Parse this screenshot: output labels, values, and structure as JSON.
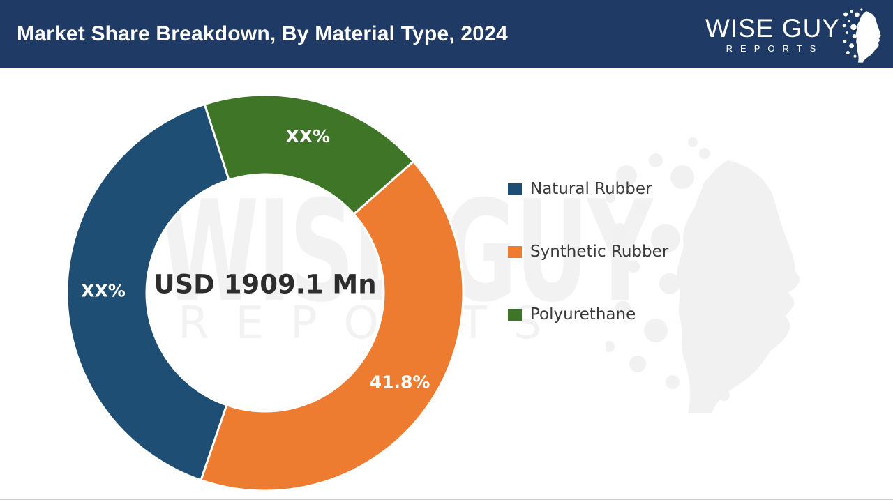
{
  "header": {
    "title": "Market Share Breakdown, By Material Type, 2024",
    "bg_color": "#1f3a64",
    "logo": {
      "brand": "WISE GUY",
      "sub": "REPORTS"
    }
  },
  "chart_data": {
    "type": "pie",
    "subtype": "donut",
    "center_label": "USD 1909.1 Mn",
    "start_angle_deg": -17.8,
    "direction": "clockwise",
    "legend_position": "right",
    "slices": [
      {
        "label": "Polyurethane",
        "value_pct": 18.4,
        "display_label": "XX%",
        "color": "#3e7527"
      },
      {
        "label": "Synthetic Rubber",
        "value_pct": 41.8,
        "display_label": "41.8%",
        "color": "#ed7c31"
      },
      {
        "label": "Natural Rubber",
        "value_pct": 39.8,
        "display_label": "XX%",
        "color": "#1f4e74"
      }
    ],
    "legend": [
      {
        "label": "Natural Rubber",
        "color": "#1f4e74"
      },
      {
        "label": "Synthetic Rubber",
        "color": "#ed7c31"
      },
      {
        "label": "Polyurethane",
        "color": "#3e7527"
      }
    ],
    "slice_label_color": "#ffffff",
    "center_label_color": "#2d2d2d",
    "legend_text_color": "#3a3a3a"
  },
  "watermark": {
    "brand": "WISE GUY",
    "sub": "REPORTS",
    "color": "#f2f2f2"
  },
  "footer": {
    "line_color": "#cccccc"
  }
}
